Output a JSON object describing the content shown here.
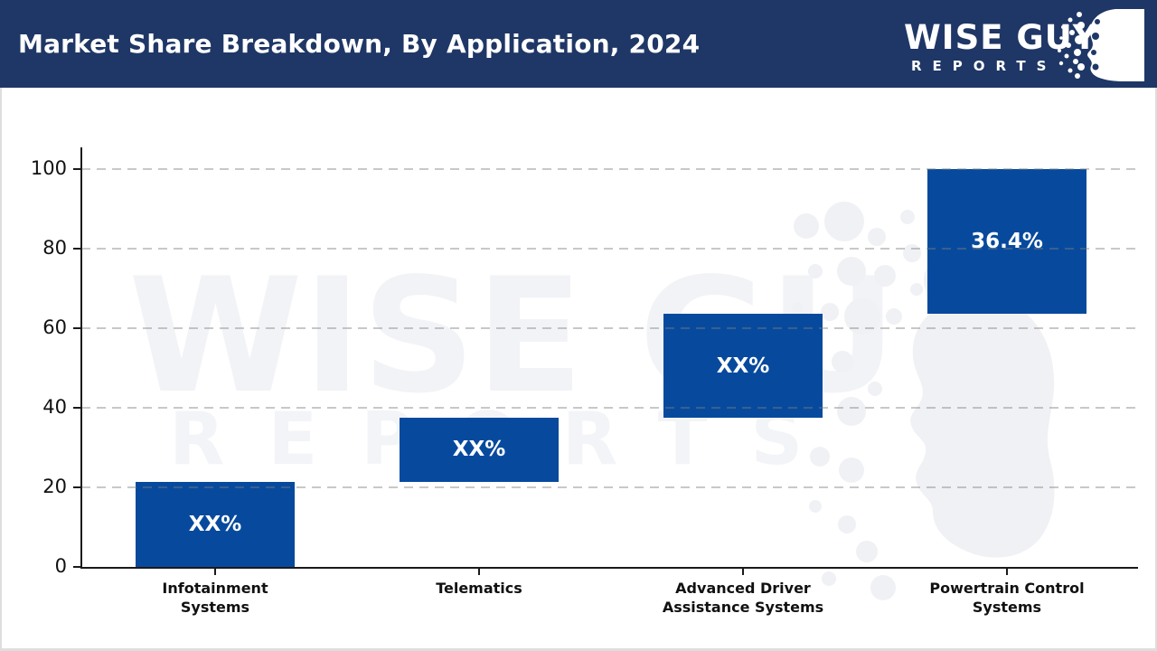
{
  "header": {
    "title": "Market Share Breakdown, By Application, 2024",
    "logo": {
      "line1": "WISE GUY",
      "line2": "REPORTS"
    }
  },
  "watermark": {
    "line1": "WISE GU",
    "line2": "REPORTS"
  },
  "colors": {
    "header_bg": "#1f3766",
    "bar": "#074a9d",
    "bar_label": "#ffffff",
    "axis": "#1a1a1a",
    "gridline": "#cdcdcd",
    "watermark": "#f1f2f5",
    "frame_border": "#dedede"
  },
  "chart_data": {
    "type": "bar",
    "subtype": "waterfall",
    "title": "Market Share Breakdown, By Application, 2024",
    "categories": [
      "Infotainment\nSystems",
      "Telematics",
      "Advanced Driver\nAssistance Systems",
      "Powertrain Control\nSystems"
    ],
    "bars": [
      {
        "label": "XX%",
        "start": 0,
        "end": 21.4
      },
      {
        "label": "XX%",
        "start": 21.4,
        "end": 37.5
      },
      {
        "label": "XX%",
        "start": 37.5,
        "end": 63.6
      },
      {
        "label": "36.4%",
        "start": 63.6,
        "end": 100
      }
    ],
    "xlabel": "",
    "ylabel": "",
    "ylim": [
      0,
      100
    ],
    "yticks": [
      0,
      20,
      40,
      60,
      80,
      100
    ],
    "grid": "horizontal-dashed-over-bars",
    "legend": "none"
  }
}
